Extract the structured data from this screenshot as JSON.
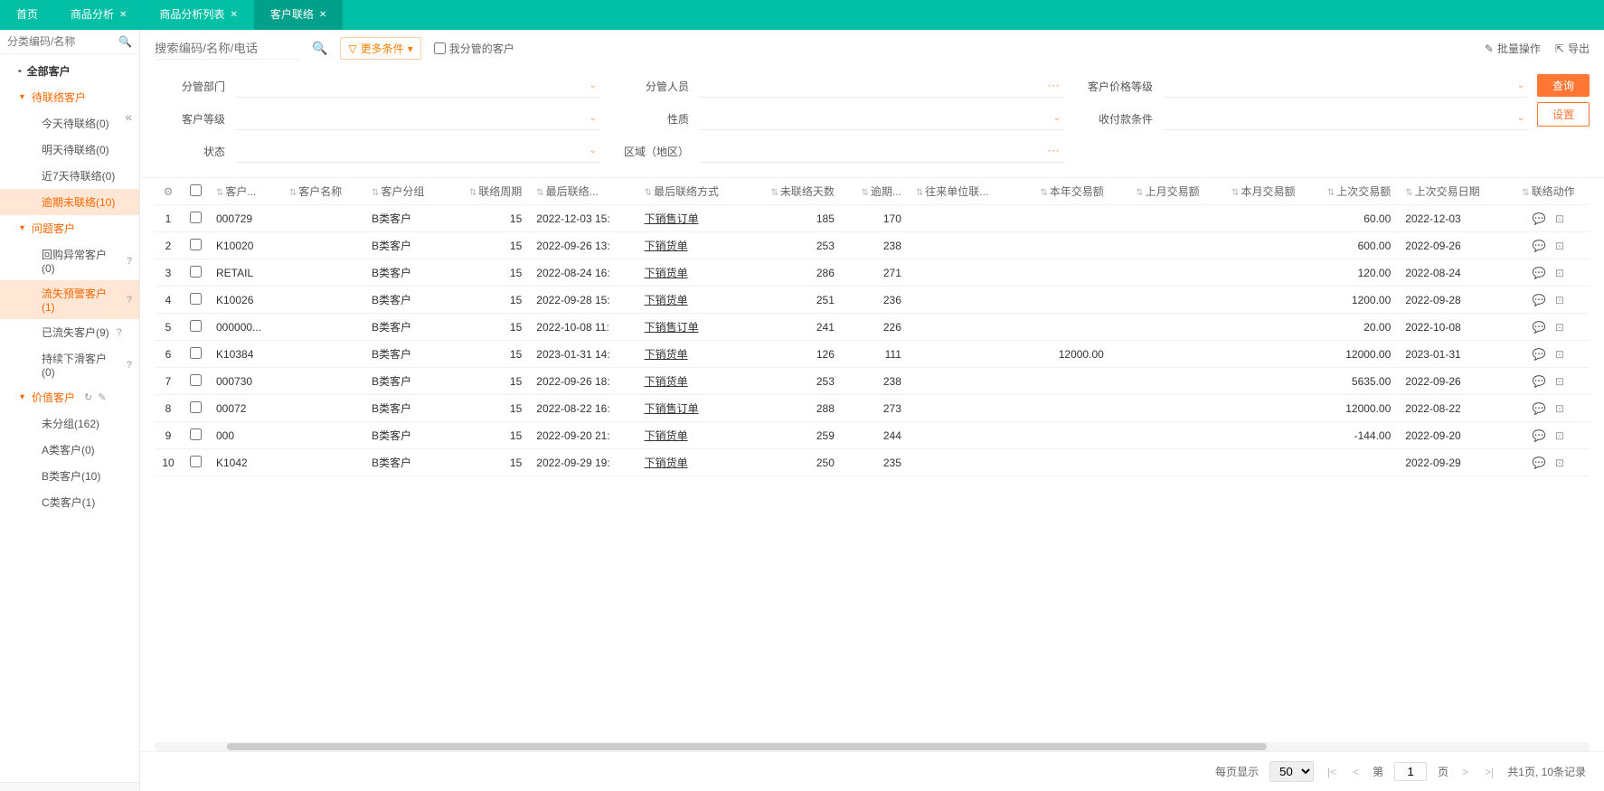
{
  "colors": {
    "primary": "#00bfa5",
    "accent": "#ff7733"
  },
  "tabs": [
    {
      "label": "首页",
      "closable": false
    },
    {
      "label": "商品分析",
      "closable": true
    },
    {
      "label": "商品分析列表",
      "closable": true
    },
    {
      "label": "客户联络",
      "closable": true,
      "active": true
    }
  ],
  "sidebar": {
    "search_placeholder": "分类编码/名称",
    "root": "全部客户",
    "groups": [
      {
        "label": "待联络客户",
        "items": [
          {
            "label": "今天待联络(0)"
          },
          {
            "label": "明天待联络(0)"
          },
          {
            "label": "近7天待联络(0)"
          },
          {
            "label": "逾期未联络(10)",
            "active": true
          }
        ]
      },
      {
        "label": "问题客户",
        "items": [
          {
            "label": "回购异常客户(0)",
            "help": true
          },
          {
            "label": "流失预警客户(1)",
            "help": true,
            "active": true
          },
          {
            "label": "已流失客户(9)",
            "help": true
          },
          {
            "label": "持续下滑客户(0)",
            "help": true
          }
        ]
      },
      {
        "label": "价值客户",
        "icons": true,
        "items": [
          {
            "label": "未分组(162)"
          },
          {
            "label": "A类客户(0)"
          },
          {
            "label": "B类客户(10)"
          },
          {
            "label": "C类客户(1)"
          }
        ]
      }
    ]
  },
  "toolbar": {
    "search_placeholder": "搜索编码/名称/电话",
    "more_conditions": "更多条件",
    "my_customers": "我分管的客户",
    "batch": "批量操作",
    "export": "导出"
  },
  "filters": {
    "labels": {
      "dept": "分管部门",
      "person": "分管人员",
      "price_level": "客户价格等级",
      "cust_level": "客户等级",
      "nature": "性质",
      "payment": "收付款条件",
      "status": "状态",
      "region": "区域（地区）"
    },
    "query_btn": "查询",
    "settings_btn": "设置"
  },
  "table": {
    "columns": [
      "",
      "",
      "客户...",
      "客户名称",
      "客户分组",
      "联络周期",
      "最后联络...",
      "最后联络方式",
      "未联络天数",
      "逾期...",
      "往来单位联...",
      "本年交易额",
      "上月交易额",
      "本月交易额",
      "上次交易额",
      "上次交易日期",
      "联络动作"
    ],
    "rows": [
      {
        "idx": 1,
        "code": "000729",
        "name": "",
        "group": "B类客户",
        "cycle": 15,
        "last": "2022-12-03 15:",
        "way": "下销售订单",
        "days": 185,
        "overdue": 170,
        "contact": "",
        "year": "",
        "lastm": "",
        "thism": "",
        "lastamt": "60.00",
        "lastdate": "2022-12-03"
      },
      {
        "idx": 2,
        "code": "K10020",
        "name": "",
        "group": "B类客户",
        "cycle": 15,
        "last": "2022-09-26 13:",
        "way": "下销货单",
        "days": 253,
        "overdue": 238,
        "contact": "",
        "year": "",
        "lastm": "",
        "thism": "",
        "lastamt": "600.00",
        "lastdate": "2022-09-26"
      },
      {
        "idx": 3,
        "code": "RETAIL",
        "name": "",
        "group": "B类客户",
        "cycle": 15,
        "last": "2022-08-24 16:",
        "way": "下销货单",
        "days": 286,
        "overdue": 271,
        "contact": "",
        "year": "",
        "lastm": "",
        "thism": "",
        "lastamt": "120.00",
        "lastdate": "2022-08-24"
      },
      {
        "idx": 4,
        "code": "K10026",
        "name": "",
        "group": "B类客户",
        "cycle": 15,
        "last": "2022-09-28 15:",
        "way": "下销货单",
        "days": 251,
        "overdue": 236,
        "contact": "",
        "year": "",
        "lastm": "",
        "thism": "",
        "lastamt": "1200.00",
        "lastdate": "2022-09-28"
      },
      {
        "idx": 5,
        "code": "000000...",
        "name": "",
        "group": "B类客户",
        "cycle": 15,
        "last": "2022-10-08 11:",
        "way": "下销售订单",
        "days": 241,
        "overdue": 226,
        "contact": "",
        "year": "",
        "lastm": "",
        "thism": "",
        "lastamt": "20.00",
        "lastdate": "2022-10-08"
      },
      {
        "idx": 6,
        "code": "K10384",
        "name": "",
        "group": "B类客户",
        "cycle": 15,
        "last": "2023-01-31 14:",
        "way": "下销货单",
        "days": 126,
        "overdue": 111,
        "contact": "",
        "year": "12000.00",
        "lastm": "",
        "thism": "",
        "lastamt": "12000.00",
        "lastdate": "2023-01-31"
      },
      {
        "idx": 7,
        "code": "000730",
        "name": "",
        "group": "B类客户",
        "cycle": 15,
        "last": "2022-09-26 18:",
        "way": "下销货单",
        "days": 253,
        "overdue": 238,
        "contact": "",
        "year": "",
        "lastm": "",
        "thism": "",
        "lastamt": "5635.00",
        "lastdate": "2022-09-26"
      },
      {
        "idx": 8,
        "code": "00072",
        "name": "",
        "group": "B类客户",
        "cycle": 15,
        "last": "2022-08-22 16:",
        "way": "下销售订单",
        "days": 288,
        "overdue": 273,
        "contact": "",
        "year": "",
        "lastm": "",
        "thism": "",
        "lastamt": "12000.00",
        "lastdate": "2022-08-22"
      },
      {
        "idx": 9,
        "code": "000",
        "name": "",
        "group": "B类客户",
        "cycle": 15,
        "last": "2022-09-20 21:",
        "way": "下销货单",
        "days": 259,
        "overdue": 244,
        "contact": "",
        "year": "",
        "lastm": "",
        "thism": "",
        "lastamt": "-144.00",
        "lastdate": "2022-09-20"
      },
      {
        "idx": 10,
        "code": "K1042",
        "name": "",
        "group": "B类客户",
        "cycle": 15,
        "last": "2022-09-29 19:",
        "way": "下销货单",
        "days": 250,
        "overdue": 235,
        "contact": "",
        "year": "",
        "lastm": "",
        "thism": "",
        "lastamt": "",
        "lastdate": "2022-09-29"
      }
    ]
  },
  "pager": {
    "per_page_label": "每页显示",
    "per_page": "50",
    "page_label_pre": "第",
    "page": "1",
    "page_label_post": "页",
    "summary": "共1页, 10条记录"
  }
}
